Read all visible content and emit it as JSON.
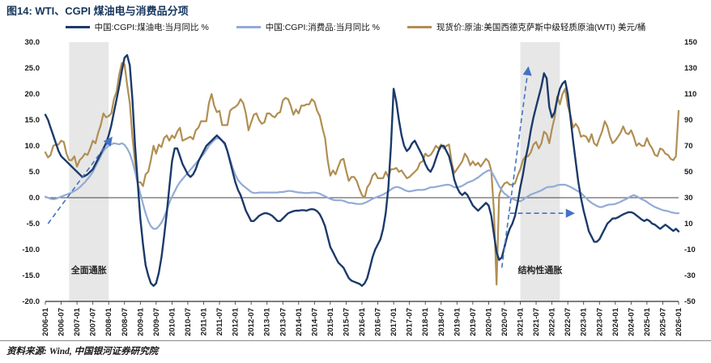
{
  "title": "图14:  WTI、CGPI 煤油电与消费品分项",
  "footer": {
    "source": "资料来源: Wind, 中国银河证券研究院"
  },
  "chart_data": {
    "type": "line",
    "x_start": "2006-01",
    "x_end": "2026-01",
    "x_tick_every_months": 6,
    "axes": {
      "left": {
        "min": -20,
        "max": 30,
        "step": 5,
        "unit": "%"
      },
      "right": {
        "min": -50,
        "max": 150,
        "step": 20,
        "unit": "美元/桶"
      }
    },
    "band_color": "#e7e7e7",
    "annotation_color": "#4472c4",
    "bands": [
      {
        "from": "2006-10",
        "to": "2008-01",
        "label": "全面通胀"
      },
      {
        "from": "2021-01",
        "to": "2022-04",
        "label": "结构性通胀"
      }
    ],
    "arrows": [
      {
        "from": [
          "2006-02",
          -5
        ],
        "to": [
          "2008-02",
          11.5
        ]
      },
      {
        "from": [
          "2020-06",
          -13.5
        ],
        "to": [
          "2021-04",
          25
        ]
      },
      {
        "from": [
          "2020-09",
          -3
        ],
        "to": [
          "2022-09",
          -3
        ]
      }
    ],
    "series": [
      {
        "name": "中国:CGPI:煤油电:当月同比 %",
        "axis": "left",
        "color": "#1b3a6b",
        "width": 2.4,
        "values": [
          16,
          15,
          13.5,
          12,
          10.5,
          9,
          8,
          7.5,
          7,
          6.5,
          6,
          5.5,
          5,
          4.5,
          4,
          4.2,
          4.5,
          5,
          5.5,
          6.5,
          7.5,
          8.5,
          9.5,
          10.5,
          12,
          14,
          16.5,
          19,
          21.5,
          24.5,
          27,
          27.5,
          25.5,
          19,
          10,
          3,
          -4,
          -9,
          -13,
          -15,
          -16.5,
          -17,
          -16.5,
          -14.5,
          -11.5,
          -7.5,
          -3,
          2,
          7,
          9.5,
          9.5,
          8,
          6.5,
          5.5,
          4.5,
          4,
          4.5,
          5.5,
          7,
          8,
          9,
          10,
          10.5,
          11,
          11.5,
          12,
          11.5,
          11,
          10.5,
          9,
          7,
          5,
          3,
          1.5,
          0.5,
          -1,
          -2.5,
          -3.5,
          -4.5,
          -4.5,
          -4,
          -3.5,
          -3.2,
          -3,
          -3,
          -3.2,
          -3.5,
          -4,
          -4.5,
          -4.5,
          -4,
          -3.5,
          -3,
          -2.8,
          -2.6,
          -2.5,
          -2.5,
          -2.4,
          -2.4,
          -2.5,
          -2.3,
          -2.2,
          -2.3,
          -2.6,
          -3.2,
          -4.2,
          -5.5,
          -7.5,
          -9.5,
          -10.5,
          -11.5,
          -12.5,
          -13,
          -13.5,
          -14.5,
          -15.5,
          -16,
          -16.2,
          -16.4,
          -16.6,
          -17,
          -16.5,
          -15.5,
          -13.5,
          -11.5,
          -10,
          -9,
          -8,
          -6,
          -3,
          2,
          10,
          21,
          18.5,
          15,
          12,
          10,
          9,
          9.5,
          10.5,
          11,
          10,
          9,
          8,
          6.5,
          5.5,
          5,
          6,
          7.5,
          9,
          10,
          10,
          9,
          8,
          6,
          3.5,
          2,
          1,
          0.5,
          1,
          0.5,
          -0.5,
          -1.5,
          -2,
          -2.5,
          -2,
          -1.5,
          -1,
          -1.5,
          -3.5,
          -7,
          -10.5,
          -12,
          -11.5,
          -9.5,
          -7.5,
          -6,
          -5,
          -3.5,
          -1,
          2,
          4.5,
          7.5,
          10,
          13,
          15.5,
          17.5,
          19.5,
          21.5,
          24,
          23,
          17.5,
          15.5,
          16.5,
          19,
          21,
          22,
          22.5,
          20,
          15.5,
          11,
          7,
          3,
          0,
          -2.5,
          -4.5,
          -6.5,
          -7.5,
          -8.5,
          -8.5,
          -8,
          -7,
          -6,
          -5,
          -4.5,
          -4,
          -4,
          -3.8,
          -3.5,
          -3.2,
          -3,
          -2.8,
          -2.8,
          -3,
          -3.4,
          -3.8,
          -4.2,
          -4.5,
          -4.2,
          -4.5,
          -5,
          -5.2,
          -5.6,
          -6,
          -5.6,
          -5.2,
          -5.6,
          -6,
          -6.4,
          -6,
          -6.5
        ]
      },
      {
        "name": "中国:CGPI:消费品:当月同比 %",
        "axis": "left",
        "color": "#92abd6",
        "width": 2.2,
        "values": [
          0.2,
          0,
          -0.2,
          -0.3,
          -0.2,
          0,
          0.2,
          0.4,
          0.6,
          0.8,
          1,
          1.3,
          1.6,
          2,
          2.5,
          3,
          3.6,
          4.2,
          5,
          6,
          7,
          8,
          9,
          9.6,
          10,
          10.3,
          10.5,
          10.4,
          10.3,
          10.5,
          10.2,
          9.5,
          8.5,
          7,
          5,
          2.8,
          0.8,
          -1.2,
          -3,
          -4.5,
          -5.5,
          -6,
          -6,
          -5.5,
          -4.8,
          -3.8,
          -2.4,
          -1,
          0.2,
          1.2,
          2.2,
          3,
          3.6,
          4.2,
          4.8,
          5.4,
          6,
          6.6,
          7.2,
          7.8,
          8.4,
          9.2,
          10,
          10.6,
          11.1,
          11.5,
          11.4,
          11,
          10.2,
          9,
          7.4,
          5.8,
          4.4,
          3.4,
          2.8,
          2.3,
          1.9,
          1.5,
          1.1,
          0.9,
          0.9,
          1,
          1,
          1,
          1,
          1,
          1,
          1,
          1,
          1.1,
          1.1,
          1.2,
          1.3,
          1.3,
          1.2,
          1.1,
          1,
          1,
          0.9,
          0.9,
          0.9,
          1,
          1,
          0.9,
          0.8,
          0.5,
          0.3,
          0,
          -0.2,
          -0.4,
          -0.5,
          -0.5,
          -0.5,
          -0.6,
          -0.8,
          -1,
          -1,
          -1.1,
          -1.2,
          -1.2,
          -1.2,
          -1,
          -0.8,
          -0.5,
          -0.2,
          0,
          0.2,
          0.4,
          0.6,
          0.9,
          1.2,
          1.6,
          1.9,
          2.1,
          2,
          1.8,
          1.5,
          1.3,
          1.2,
          1.3,
          1.4,
          1.5,
          1.5,
          1.5,
          1.6,
          1.8,
          2,
          2,
          2.1,
          2.2,
          2.3,
          2.4,
          2.5,
          2.5,
          2.3,
          2,
          2,
          2.1,
          2.3,
          2.6,
          2.9,
          3.1,
          3.3,
          3.6,
          3.9,
          4.3,
          4.7,
          5,
          5.3,
          5.1,
          4.2,
          3.2,
          2.2,
          1.4,
          0.8,
          0.4,
          0.1,
          -0.2,
          -0.4,
          -0.6,
          -0.7,
          -0.4,
          0,
          0.3,
          0.6,
          0.8,
          1,
          1.2,
          1.4,
          1.7,
          2,
          2.1,
          2.1,
          2.2,
          2.4,
          2.5,
          2.5,
          2.5,
          2.3,
          2.1,
          1.8,
          1.5,
          1.2,
          0.9,
          0.4,
          -0.1,
          -0.6,
          -1,
          -1.3,
          -1.6,
          -1.8,
          -1.8,
          -1.6,
          -1.4,
          -1.3,
          -1.3,
          -1.2,
          -1,
          -0.8,
          -0.5,
          -0.3,
          0,
          0.3,
          0.5,
          0.3,
          0,
          -0.3,
          -0.5,
          -0.8,
          -1.2,
          -1.5,
          -1.8,
          -2,
          -2.2,
          -2.4,
          -2.5,
          -2.6,
          -2.8,
          -2.9,
          -3,
          -3
        ]
      },
      {
        "name": "现货价:原油:美国西德克萨斯中级轻质原油(WTI) 美元/桶",
        "axis": "right",
        "color": "#b08f52",
        "width": 2.2,
        "values": [
          65,
          61,
          63,
          70,
          71,
          71,
          74,
          73,
          64,
          59,
          59,
          62,
          54,
          59,
          61,
          64,
          63,
          68,
          74,
          72,
          80,
          86,
          95,
          92,
          93,
          95,
          106,
          112,
          125,
          134,
          133,
          117,
          103,
          77,
          57,
          42,
          42,
          39,
          48,
          50,
          59,
          70,
          64,
          71,
          69,
          76,
          78,
          74,
          78,
          76,
          81,
          84,
          74,
          75,
          76,
          77,
          75,
          82,
          84,
          89,
          89,
          89,
          103,
          110,
          101,
          96,
          97,
          86,
          86,
          86,
          97,
          99,
          100,
          102,
          106,
          103,
          95,
          82,
          88,
          94,
          95,
          90,
          87,
          88,
          95,
          95,
          93,
          92,
          95,
          96,
          105,
          107,
          106,
          101,
          94,
          98,
          95,
          101,
          101,
          102,
          102,
          106,
          104,
          97,
          93,
          84,
          76,
          59,
          47,
          51,
          48,
          54,
          59,
          60,
          51,
          43,
          46,
          46,
          43,
          37,
          32,
          30,
          38,
          41,
          47,
          49,
          45,
          45,
          45,
          50,
          46,
          52,
          52,
          53,
          50,
          51,
          48,
          45,
          46,
          48,
          50,
          52,
          57,
          58,
          64,
          62,
          63,
          66,
          70,
          68,
          71,
          68,
          70,
          71,
          57,
          49,
          52,
          55,
          58,
          64,
          61,
          55,
          58,
          55,
          57,
          54,
          57,
          60,
          58,
          51,
          20,
          -37,
          32,
          38,
          41,
          42,
          40,
          40,
          41,
          47,
          52,
          59,
          62,
          62,
          65,
          71,
          73,
          68,
          72,
          81,
          79,
          72,
          83,
          92,
          108,
          102,
          110,
          114,
          101,
          94,
          84,
          87,
          84,
          77,
          78,
          77,
          73,
          79,
          72,
          70,
          76,
          81,
          89,
          85,
          77,
          72,
          74,
          77,
          80,
          85,
          80,
          79,
          82,
          77,
          70,
          72,
          70,
          70,
          76,
          71,
          68,
          63,
          62,
          68,
          67,
          64,
          63,
          60,
          59,
          62,
          97
        ]
      }
    ]
  }
}
